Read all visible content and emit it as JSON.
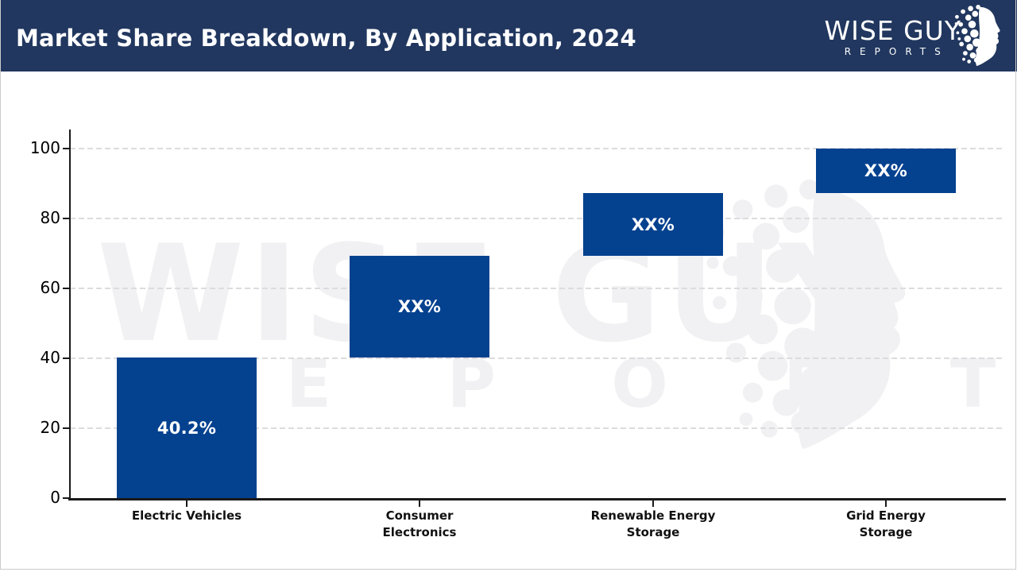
{
  "header": {
    "title": "Market Share Breakdown, By Application, 2024",
    "logo": {
      "primary": "WISE GUY",
      "secondary": "REPORTS"
    }
  },
  "watermark": {
    "line1": "WISE GUY",
    "line2": "REPORTS"
  },
  "colors": {
    "header_bg": "#21375f",
    "bar": "#04418f",
    "grid": "#dcdcde",
    "axis": "#1a1a1a",
    "watermark": "#f1f1f3",
    "bar_label": "#ffffff"
  },
  "chart_data": {
    "type": "bar",
    "subtype": "floating-segment-waterfall",
    "title": "Market Share Breakdown, By Application, 2024",
    "xlabel": "",
    "ylabel": "",
    "ylim": [
      0,
      105.5
    ],
    "grid": "horizontal-dashed",
    "legend": "none",
    "yticks": [
      0,
      20,
      40,
      60,
      80,
      100
    ],
    "categories": [
      "Electric Vehicles",
      "Consumer\nElectronics",
      "Renewable Energy\nStorage",
      "Grid Energy\nStorage"
    ],
    "bars": [
      {
        "category": "Electric Vehicles",
        "start": 0,
        "end": 40.2,
        "label": "40.2%"
      },
      {
        "category": "Consumer Electronics",
        "start": 40.2,
        "end": 69.3,
        "label": "XX%"
      },
      {
        "category": "Renewable Energy Storage",
        "start": 69.3,
        "end": 87.3,
        "label": "XX%"
      },
      {
        "category": "Grid Energy Storage",
        "start": 87.3,
        "end": 100,
        "label": "XX%"
      }
    ]
  }
}
